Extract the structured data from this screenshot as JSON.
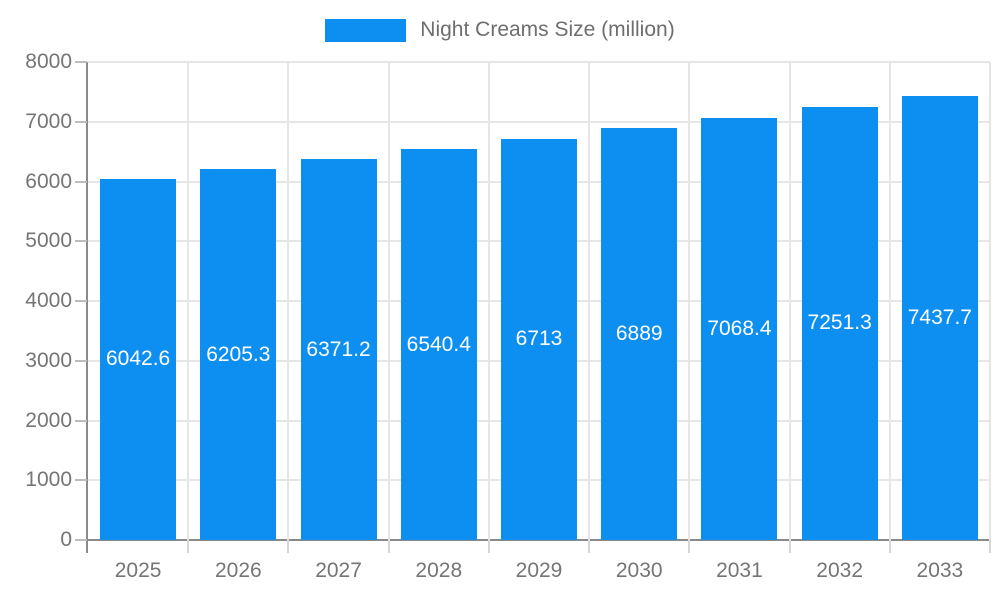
{
  "legend": {
    "label": "Night Creams Size (million)"
  },
  "chart_data": {
    "type": "bar",
    "title": "Night Creams Size (million)",
    "series_name": "Night Creams Size (million)",
    "categories": [
      "2025",
      "2026",
      "2027",
      "2028",
      "2029",
      "2030",
      "2031",
      "2032",
      "2033"
    ],
    "values": [
      6042.6,
      6205.3,
      6371.2,
      6540.4,
      6713,
      6889,
      7068.4,
      7251.3,
      7437.7
    ],
    "value_labels": [
      "6042.6",
      "6205.3",
      "6371.2",
      "6540.4",
      "6713",
      "6889",
      "7068.4",
      "7251.3",
      "7437.7"
    ],
    "xlabel": "",
    "ylabel": "",
    "ylim": [
      0,
      8000
    ],
    "y_ticks": [
      0,
      1000,
      2000,
      3000,
      4000,
      5000,
      6000,
      7000,
      8000
    ],
    "grid": true,
    "legend_position": "top"
  },
  "colors": {
    "bar": "#0d8ff2",
    "grid": "#e6e6e6",
    "axis": "#8a8a8a",
    "y_tick": "#bdbdbd",
    "x_tick": "#d6d6d6",
    "text": "#757575",
    "legend_text": "#6e6e6e",
    "bar_label": "#ffffff",
    "background": "#ffffff"
  }
}
